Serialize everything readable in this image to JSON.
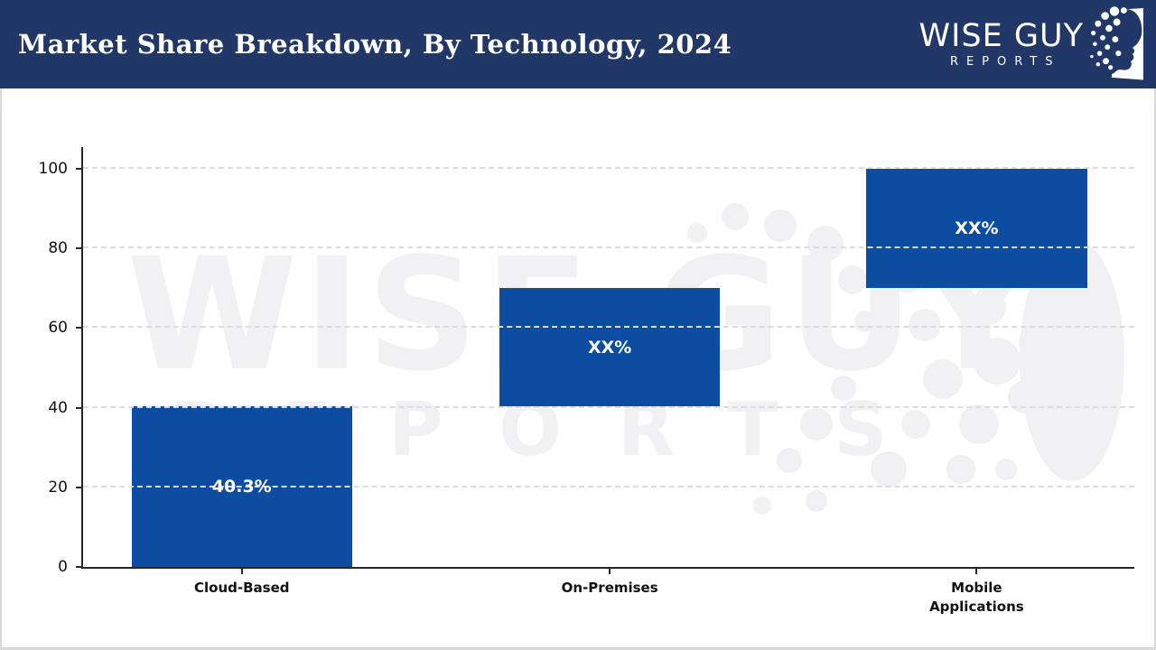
{
  "header": {
    "title": "Market Share Breakdown, By Technology, 2024",
    "logo": {
      "name": "WISE GUY",
      "sub": "REPORTS"
    }
  },
  "watermark": {
    "line1": "WISE GUY",
    "line2": "REPORTS"
  },
  "chart_data": {
    "type": "bar",
    "variant": "floating-segment-bars (cumulative share)",
    "title": "Market Share Breakdown, By Technology, 2024",
    "categories": [
      "Cloud-Based",
      "On-Premises",
      "Mobile Applications"
    ],
    "series": [
      {
        "name": "Cloud-Based",
        "start": 0,
        "end": 40.3,
        "label": "40.3%"
      },
      {
        "name": "On-Premises",
        "start": 40.3,
        "end": 70,
        "label": "XX%"
      },
      {
        "name": "Mobile Applications",
        "start": 70,
        "end": 100,
        "label": "XX%"
      }
    ],
    "yticks": [
      0,
      20,
      40,
      60,
      80,
      100
    ],
    "ylim": [
      0,
      100
    ],
    "xlabel": "",
    "ylabel": "",
    "grid": "horizontal dashed, drawn over bars",
    "legend": "none",
    "bar_color": "#0c4da2",
    "label_color": "#ffffff"
  },
  "colors": {
    "header_bg": "#213767",
    "bar": "#0c4da2",
    "grid": "#dcdcdc",
    "axis": "#262626",
    "watermark": "#f1f1f4",
    "content_border": "#d9d9d9",
    "title_text": "#ffffff"
  }
}
